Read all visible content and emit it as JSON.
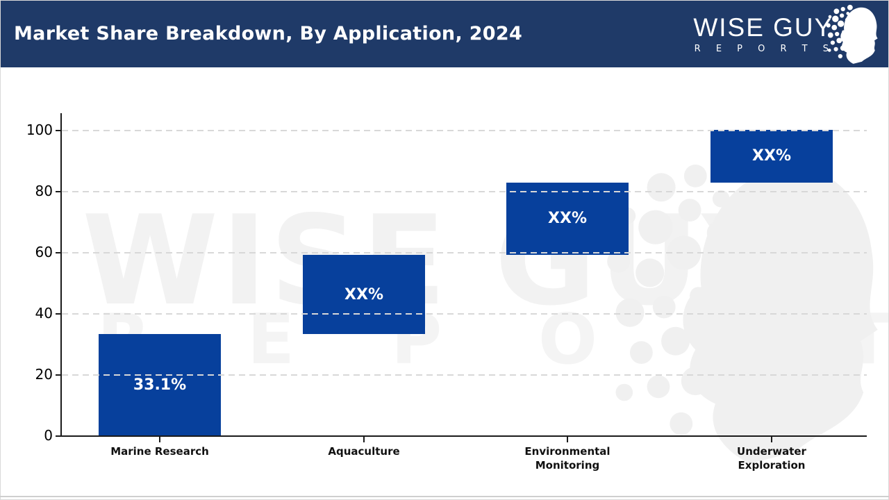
{
  "header": {
    "title": "Market Share Breakdown, By Application, 2024",
    "logo": {
      "line1": "WISE GUY",
      "line2": "R E P O R T S"
    }
  },
  "watermark": {
    "line1": "WISE GUY",
    "line2": "R E P O R T S"
  },
  "colors": {
    "header_bg": "#1f3a68",
    "bar": "#07409c",
    "gridline": "#d8d8d8",
    "axis": "#1a1a1a",
    "bar_label": "#ffffff",
    "watermark": "#f2f2f2"
  },
  "chart_data": {
    "type": "bar",
    "subtype": "floating-waterfall",
    "title": "Market Share Breakdown, By Application, 2024",
    "categories": [
      "Marine Research",
      "Aquaculture",
      "Environmental\nMonitoring",
      "Underwater\nExploration"
    ],
    "segments": [
      {
        "category": "Marine Research",
        "start": 0,
        "end": 33.1,
        "label": "33.1%"
      },
      {
        "category": "Aquaculture",
        "start": 33.1,
        "end": 59.1,
        "label": "XX%"
      },
      {
        "category": "Environmental Monitoring",
        "start": 59.1,
        "end": 82.8,
        "label": "XX%"
      },
      {
        "category": "Underwater Exploration",
        "start": 82.8,
        "end": 100,
        "label": "XX%"
      }
    ],
    "yticks": [
      0,
      20,
      40,
      60,
      80,
      100
    ],
    "ylim": [
      0,
      105.5
    ],
    "xlabel": "",
    "ylabel": "",
    "grid": "horizontal-dashed",
    "legend": "none"
  }
}
